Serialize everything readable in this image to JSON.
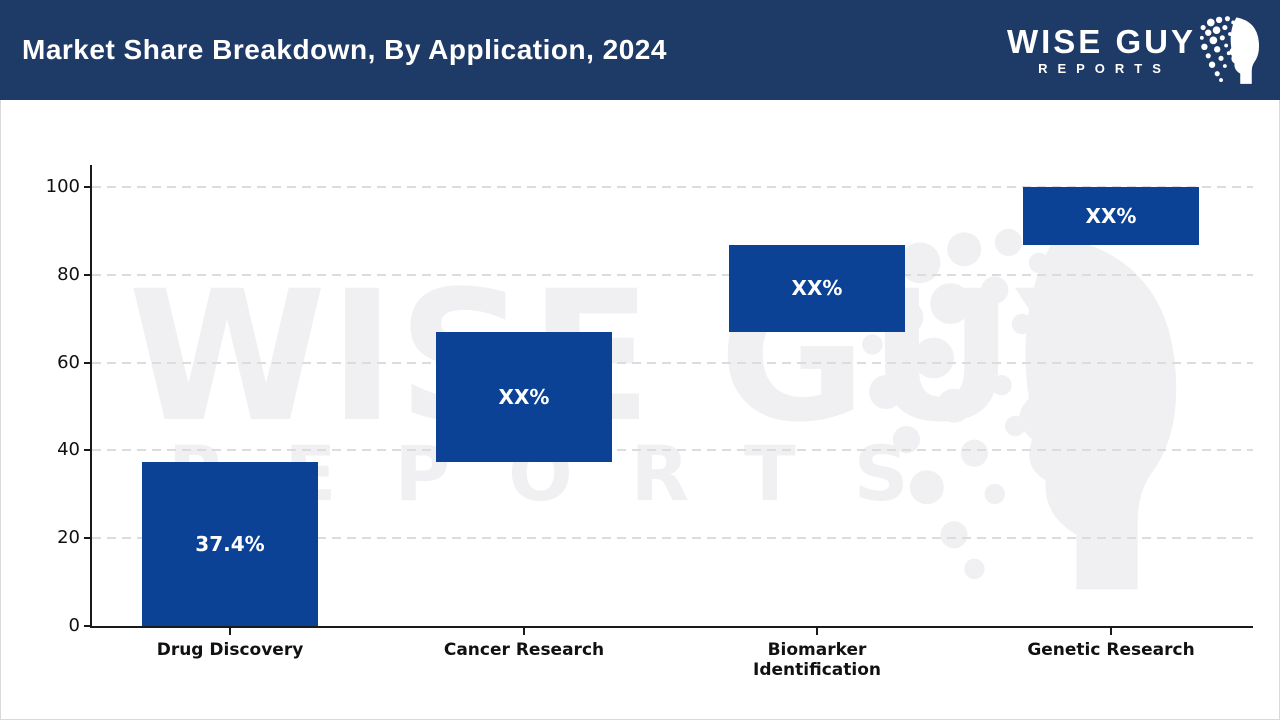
{
  "header": {
    "title": "Market Share Breakdown, By Application, 2024",
    "background": "#1e3a66",
    "brand": {
      "line1": "WISE GUY",
      "line2": "REPORTS"
    }
  },
  "watermark": {
    "line1": "WISE GUY",
    "line2": "REPORTS"
  },
  "chart_data": {
    "type": "bar",
    "subtype": "waterfall",
    "title": "Market Share Breakdown, By Application, 2024",
    "categories": [
      "Drug Discovery",
      "Cancer Research",
      "Biomarker Identification",
      "Genetic Research"
    ],
    "segments": [
      {
        "category": "Drug Discovery",
        "start": 0,
        "end": 37.4,
        "value": 37.4,
        "label": "37.4%"
      },
      {
        "category": "Cancer Research",
        "start": 37.4,
        "end": 67.0,
        "value": 29.6,
        "label": "XX%"
      },
      {
        "category": "Biomarker Identification",
        "start": 67.0,
        "end": 86.8,
        "value": 19.8,
        "label": "XX%"
      },
      {
        "category": "Genetic Research",
        "start": 86.8,
        "end": 100.0,
        "value": 13.2,
        "label": "XX%"
      }
    ],
    "y_ticks": [
      0,
      20,
      40,
      60,
      80,
      100
    ],
    "ylim": [
      0,
      105
    ],
    "xlabel": "",
    "ylabel": "",
    "grid": "horizontal-dashed",
    "legend": "none",
    "bar_color": "#0b4296",
    "grid_color": "#dcdcdc",
    "axis_color": "#1a1a1a"
  }
}
